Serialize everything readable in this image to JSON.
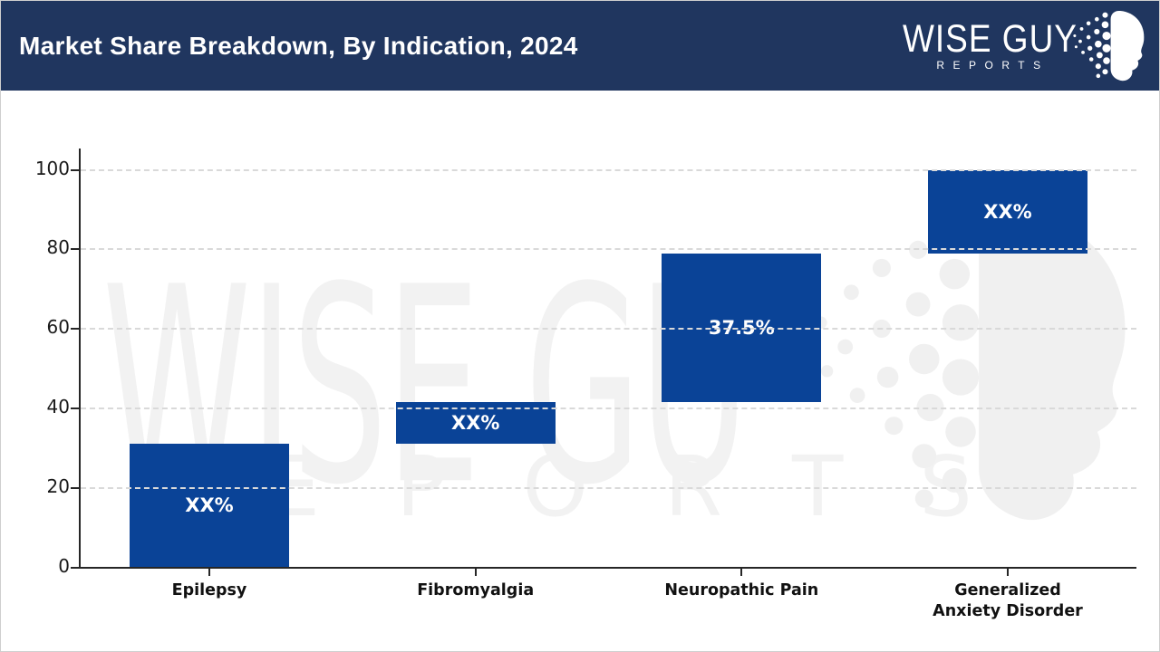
{
  "header": {
    "title": "Market Share Breakdown, By Indication, 2024",
    "logo": {
      "line1": "WISE GUY",
      "line2": "REPORTS"
    }
  },
  "watermark": {
    "line1": "WISE GU",
    "line2": "REPORTS"
  },
  "colors": {
    "header_bg": "#20365f",
    "title_text": "#ffffff",
    "bar": "#0a4397",
    "bar_label": "#ffffff",
    "grid": "#d9d9d9",
    "axis": "#262626",
    "watermark": "#f2f2f2"
  },
  "chart_data": {
    "type": "bar",
    "subtype": "waterfall",
    "title": "Market Share Breakdown, By Indication, 2024",
    "categories": [
      "Epilepsy",
      "Fibromyalgia",
      "Neuropathic Pain",
      "Generalized\nAnxiety Disorder"
    ],
    "segments": [
      {
        "start": 0,
        "end": 31
      },
      {
        "start": 31,
        "end": 41.5
      },
      {
        "start": 41.5,
        "end": 79
      },
      {
        "start": 79,
        "end": 100
      }
    ],
    "values": [
      31,
      10.5,
      37.5,
      21
    ],
    "bar_labels": [
      "XX%",
      "XX%",
      "37.5%",
      "XX%"
    ],
    "xlabel": "",
    "ylabel": "",
    "ylim": [
      0,
      105
    ],
    "yticks": [
      0,
      20,
      40,
      60,
      80,
      100
    ],
    "grid": "dashed-horizontal-on-top",
    "legend": "none"
  }
}
